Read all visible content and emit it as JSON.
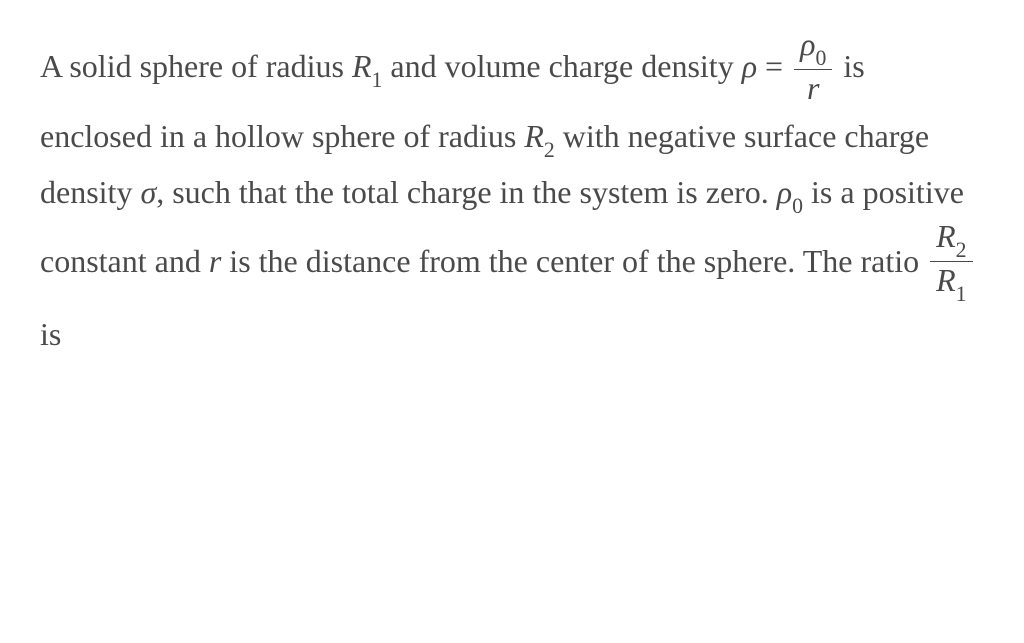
{
  "text_color": "#4a4a4a",
  "background_color": "#ffffff",
  "base_fontsize": 32,
  "font_family": "Georgia, Times New Roman, serif",
  "line_height": 1.65,
  "tokens": {
    "t1": "A solid sphere of radius ",
    "R": "R",
    "sub1": "1",
    "t2": " and volume charge density ",
    "rho": "ρ",
    "eq": " = ",
    "rho_num": "ρ",
    "sub0": "0",
    "r_den": "r",
    "t3": " is enclosed in a hollow sphere of radius ",
    "sub2": "2",
    "t4": " with negative surface charge density ",
    "sigma": "σ",
    "comma": ", ",
    "t5": "such that the total charge in the system is zero. ",
    "t6": " is a positive constant and ",
    "r_var": "r",
    "t7": " is the distance from the center of the sphere. The ratio ",
    "t8": " is"
  }
}
